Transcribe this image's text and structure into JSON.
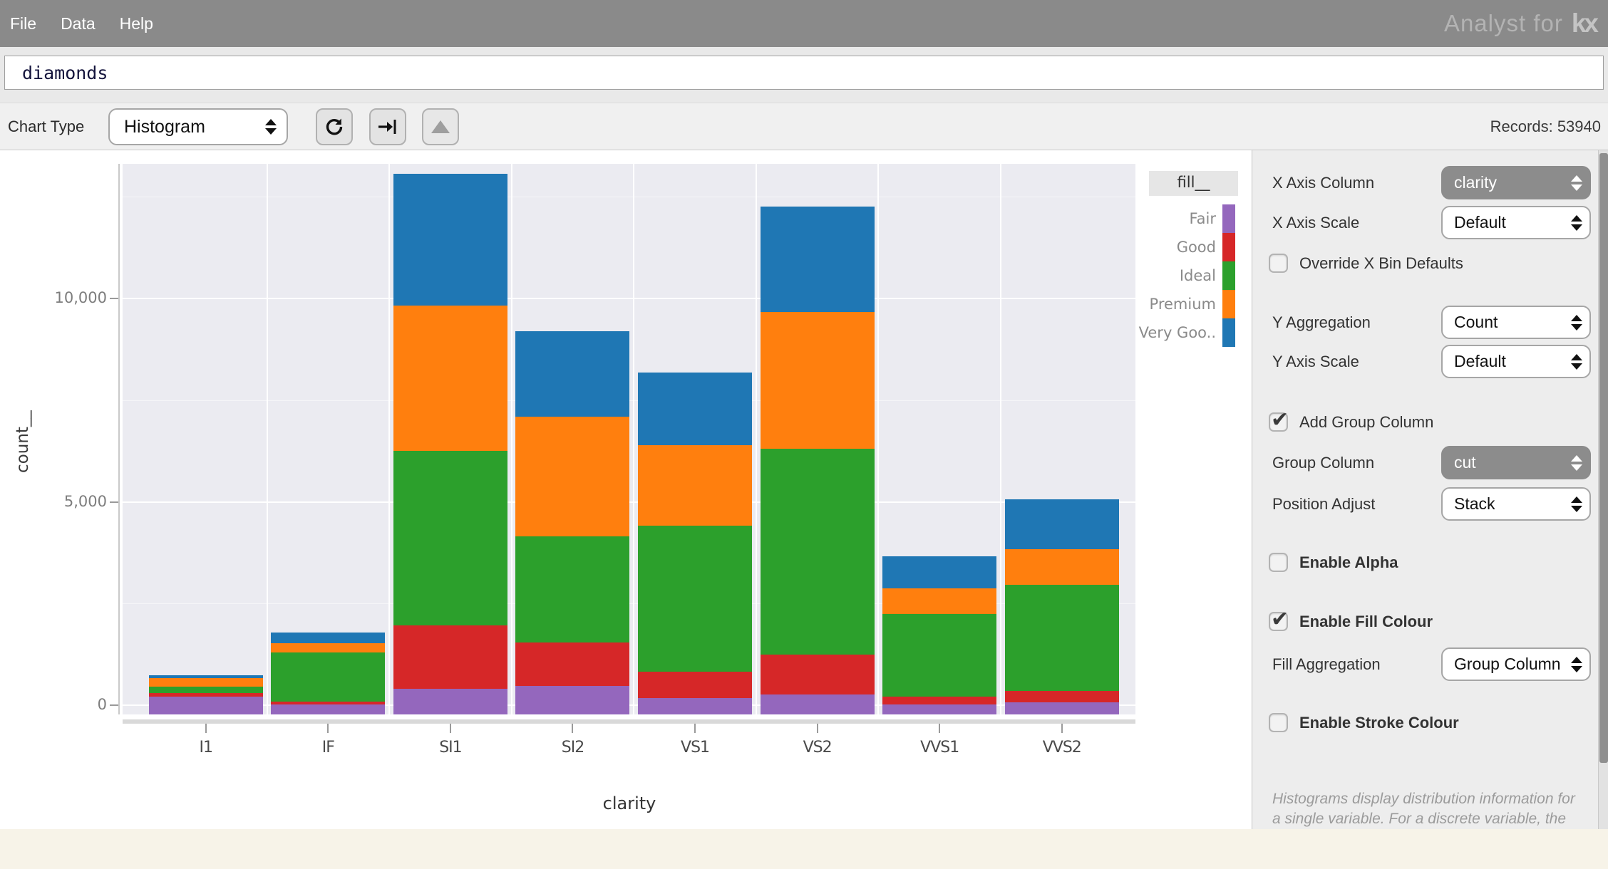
{
  "menu": {
    "items": [
      "File",
      "Data",
      "Help"
    ],
    "brand_prefix": "Analyst for",
    "brand_logo": "kx"
  },
  "formula_bar": {
    "value": "diamonds"
  },
  "toolbar": {
    "chart_type_label": "Chart Type",
    "chart_type_value": "Histogram",
    "buttons": [
      {
        "name": "refresh-button",
        "icon": "refresh-icon",
        "disabled": false
      },
      {
        "name": "run-to-end-button",
        "icon": "arrow-to-bar-icon",
        "disabled": false
      },
      {
        "name": "collapse-button",
        "icon": "triangle-up-icon",
        "disabled": true
      }
    ],
    "records": "Records: 53940"
  },
  "chart_data": {
    "type": "bar",
    "stacked": true,
    "title": "",
    "xlabel": "clarity",
    "ylabel": "count__",
    "categories": [
      "I1",
      "IF",
      "SI1",
      "SI2",
      "VS1",
      "VS2",
      "VVS1",
      "VVS2"
    ],
    "series": [
      {
        "name": "Fair",
        "color": "#9467bd",
        "values": [
          210,
          9,
          408,
          466,
          170,
          261,
          17,
          69
        ]
      },
      {
        "name": "Good",
        "color": "#d62728",
        "values": [
          96,
          71,
          1560,
          1081,
          648,
          978,
          186,
          286
        ]
      },
      {
        "name": "Ideal",
        "color": "#2ca02c",
        "values": [
          146,
          1212,
          4282,
          2598,
          3589,
          5071,
          2047,
          2606
        ]
      },
      {
        "name": "Premium",
        "color": "#ff7f0e",
        "values": [
          205,
          230,
          3575,
          2949,
          1989,
          3357,
          616,
          870
        ]
      },
      {
        "name": "Very Good",
        "color": "#1f77b4",
        "values": [
          84,
          268,
          3240,
          2100,
          1775,
          2591,
          789,
          1235
        ]
      }
    ],
    "totals": [
      741,
      1790,
      13065,
      9194,
      8171,
      12258,
      3655,
      5066
    ],
    "legend": {
      "title": "fill__",
      "entries": [
        "Fair",
        "Good",
        "Ideal",
        "Premium",
        "Very Goo.."
      ],
      "position": "right"
    },
    "y_ticks": [
      {
        "value": 0,
        "label": "0"
      },
      {
        "value": 5000,
        "label": "5,000"
      },
      {
        "value": 10000,
        "label": "10,000"
      }
    ],
    "minor_grid_values": [
      2500,
      7500,
      12500
    ],
    "ylim": [
      -230,
      13550
    ],
    "grid": true,
    "plot_background": "#ebebf1"
  },
  "panel": {
    "x_axis_column": {
      "label": "X Axis Column",
      "value": "clarity"
    },
    "x_axis_scale": {
      "label": "X Axis Scale",
      "value": "Default"
    },
    "override_x_bin": {
      "label": "Override X Bin Defaults",
      "checked": false
    },
    "y_aggregation": {
      "label": "Y Aggregation",
      "value": "Count"
    },
    "y_axis_scale": {
      "label": "Y Axis Scale",
      "value": "Default"
    },
    "add_group_column": {
      "label": "Add Group Column",
      "checked": true
    },
    "group_column": {
      "label": "Group Column",
      "value": "cut"
    },
    "position_adjust": {
      "label": "Position Adjust",
      "value": "Stack"
    },
    "enable_alpha": {
      "label": "Enable Alpha",
      "checked": false
    },
    "enable_fill_colour": {
      "label": "Enable Fill Colour",
      "checked": true
    },
    "fill_aggregation": {
      "label": "Fill Aggregation",
      "value": "Group Column"
    },
    "enable_stroke_colour": {
      "label": "Enable Stroke Colour",
      "checked": false
    },
    "help_text": "Histograms display distribution information for a single variable. For a discrete variable, the counts of the unique"
  }
}
